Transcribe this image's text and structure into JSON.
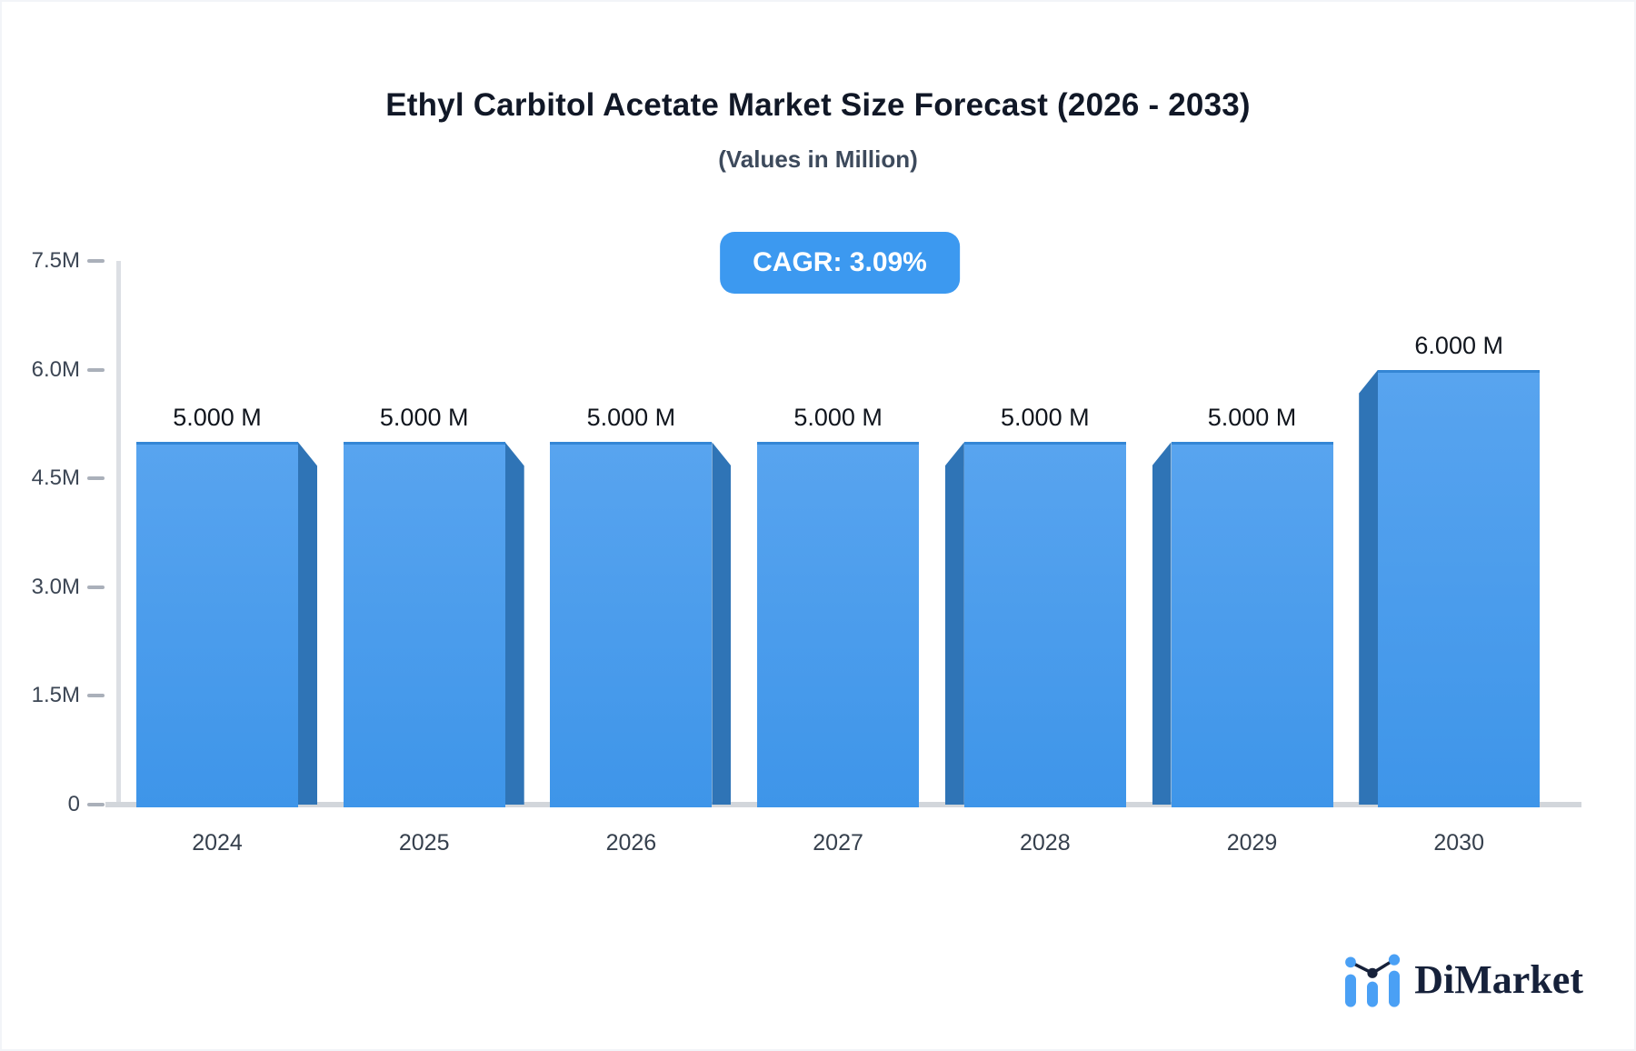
{
  "header": {
    "title": "Ethyl Carbitol Acetate Market Size Forecast (2026 - 2033)",
    "subtitle": "(Values in Million)",
    "cagr_badge": "CAGR: 3.09%"
  },
  "logo": {
    "text": "DiMarket",
    "icon": "mini-bar-line-chart-icon"
  },
  "colors": {
    "badge_bg": "#3c99f0",
    "bar_fill_top": "#58a4ef",
    "bar_fill_bottom": "#3e95e9",
    "bar_side": "#2f74b6",
    "axis_line": "#dcdfe4",
    "logo_navy": "#16213a",
    "logo_blue": "#4aa0f5"
  },
  "chart_data": {
    "type": "bar",
    "title": "Ethyl Carbitol Acetate Market Size Forecast (2026 - 2033)",
    "subtitle": "(Values in Million)",
    "xlabel": "",
    "ylabel": "",
    "ylim": [
      0,
      7.5
    ],
    "grid": false,
    "legend": "none",
    "categories": [
      "2024",
      "2025",
      "2026",
      "2027",
      "2028",
      "2029",
      "2030"
    ],
    "values": [
      5.0,
      5.0,
      5.0,
      5.0,
      5.0,
      5.0,
      6.0
    ],
    "value_labels": [
      "5.000 M",
      "5.000 M",
      "5.000 M",
      "5.000 M",
      "5.000 M",
      "5.000 M",
      "6.000 M"
    ],
    "unit": "Million",
    "y_tick_labels": [
      "7.5M",
      "6.0M",
      "4.5M",
      "3.0M",
      "1.5M",
      "0"
    ],
    "y_tick_values": [
      7.5,
      6.0,
      4.5,
      3.0,
      1.5,
      0
    ],
    "annotations": [
      "CAGR: 3.09%"
    ]
  }
}
